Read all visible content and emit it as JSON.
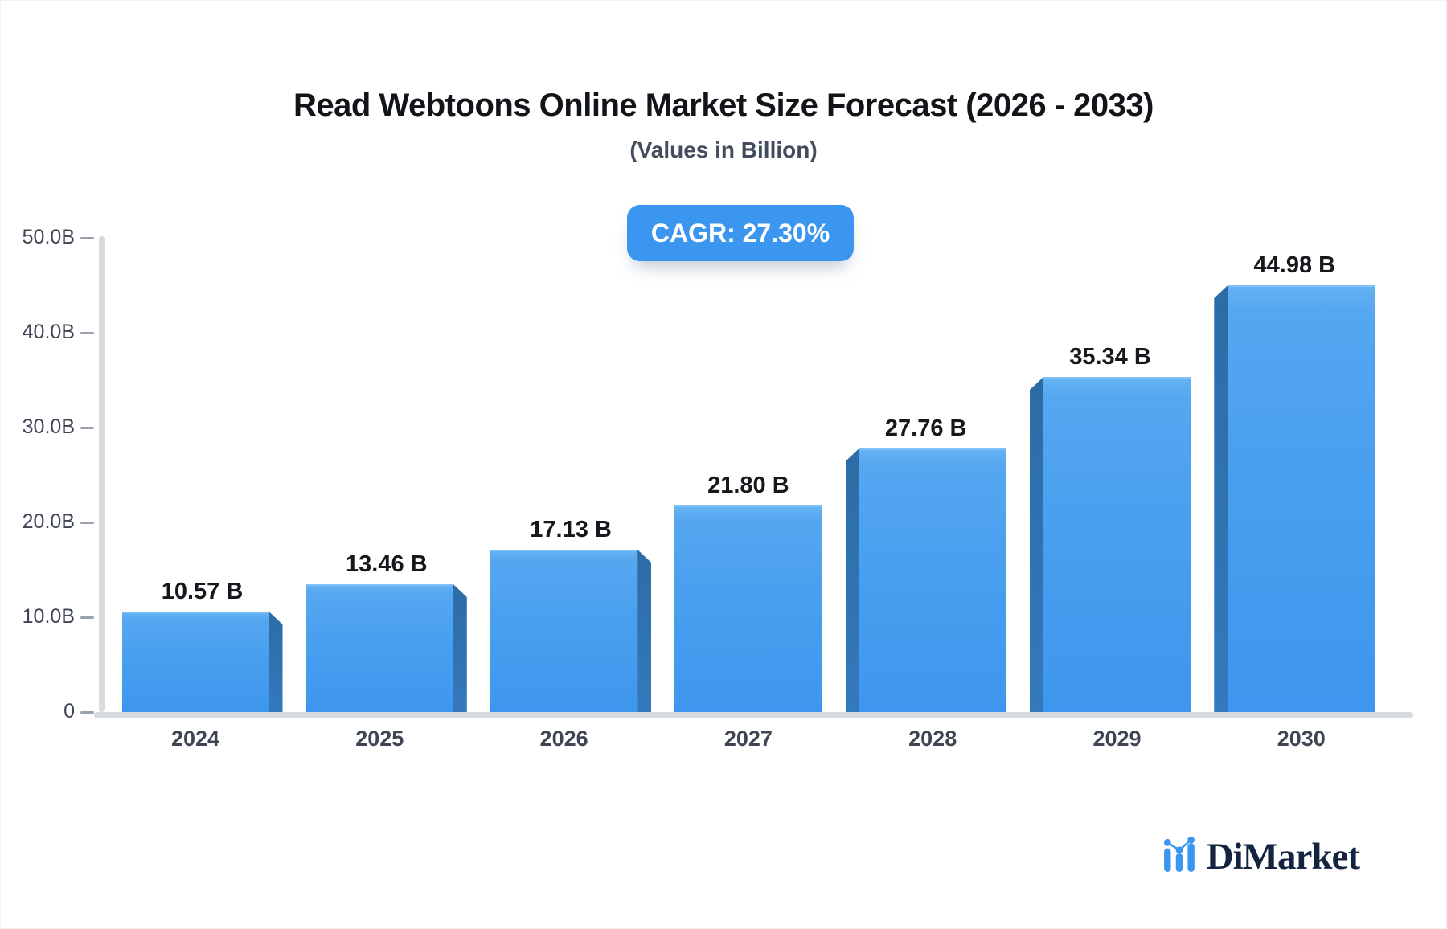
{
  "page": {
    "title": "Read Webtoons Online Market Size Forecast (2026 - 2033)",
    "subtitle": "(Values in Billion)",
    "cagr_label": "CAGR: 27.30%",
    "brand": "DiMarket"
  },
  "colors": {
    "accent": "#3B96F0",
    "bar_face_top": "#5BACF2",
    "bar_face_bottom": "#3E97EE",
    "bar_side": "#2E71B1",
    "axis_gray": "#D7DBDF",
    "tick_dash": "#99A1AB",
    "axis_text": "#3E4654",
    "value_text": "#15181C",
    "title_text": "#111418",
    "subtitle_text": "#424D5C",
    "logo_navy": "#14233F"
  },
  "chart_data": {
    "type": "bar",
    "title": "Read Webtoons Online Market Size Forecast (2026 - 2033)",
    "subtitle": "(Values in Billion)",
    "annotation": "CAGR: 27.30%",
    "unit": "Billion",
    "categories": [
      "2024",
      "2025",
      "2026",
      "2027",
      "2028",
      "2029",
      "2030"
    ],
    "values": [
      10.57,
      13.46,
      17.13,
      21.8,
      27.76,
      35.34,
      44.98
    ],
    "value_labels": [
      "10.57 B",
      "13.46 B",
      "17.13 B",
      "21.80 B",
      "27.76 B",
      "35.34 B",
      "44.98 B"
    ],
    "ylim": [
      0,
      50
    ],
    "yticks": [
      {
        "value": 0,
        "label": "0"
      },
      {
        "value": 10,
        "label": "10.0B"
      },
      {
        "value": 20,
        "label": "20.0B"
      },
      {
        "value": 30,
        "label": "30.0B"
      },
      {
        "value": 40,
        "label": "40.0B"
      },
      {
        "value": 50,
        "label": "50.0B"
      }
    ],
    "grid": "off",
    "legend": "none",
    "bar_style": "3d-perspective"
  }
}
